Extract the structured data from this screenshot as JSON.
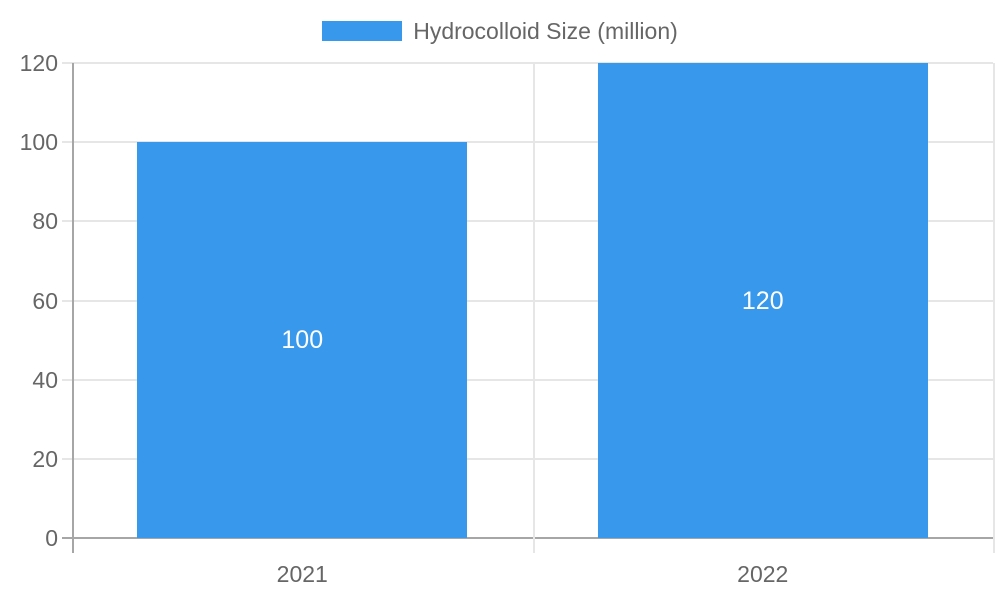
{
  "legend": {
    "label": "Hydrocolloid Size (million)"
  },
  "chart_data": {
    "type": "bar",
    "title": "",
    "categories": [
      "2021",
      "2022"
    ],
    "series": [
      {
        "name": "Hydrocolloid Size (million)",
        "values": [
          100,
          120
        ]
      }
    ],
    "data_labels": [
      "100",
      "120"
    ],
    "y_ticks": [
      0,
      20,
      40,
      60,
      80,
      100,
      120
    ],
    "ylim": [
      0,
      120
    ],
    "grid": "on",
    "legend_position": "top",
    "colors": {
      "bar": "#3899EC",
      "grid_light": "#e6e6e6",
      "axis_dark": "#a6a6a6",
      "tick_text": "#666666",
      "value_text": "#ffffff",
      "background": "#ffffff"
    }
  }
}
